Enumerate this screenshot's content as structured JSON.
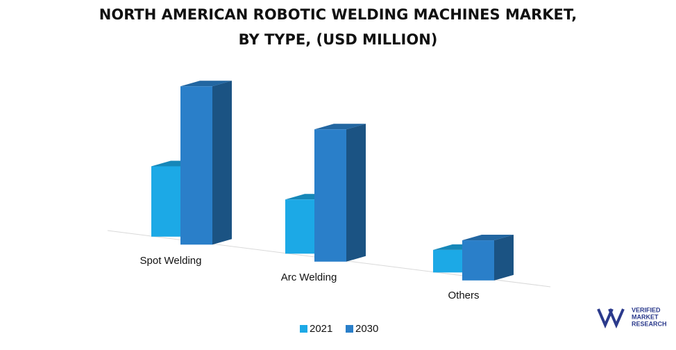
{
  "chart_data": {
    "type": "bar3d",
    "title": [
      "NORTH AMERICAN ROBOTIC WELDING MACHINES MARKET,",
      "BY TYPE, (USD MILLION)"
    ],
    "categories": [
      "Spot Welding",
      "Arc Welding",
      "Others"
    ],
    "series": [
      {
        "name": "2021",
        "color": "#1ca9e6",
        "values": [
          100,
          77,
          32
        ]
      },
      {
        "name": "2030",
        "color": "#2a7fc9",
        "values": [
          225,
          188,
          57
        ]
      }
    ]
  },
  "logo": [
    "VERIFIED",
    "MARKET",
    "RESEARCH"
  ]
}
